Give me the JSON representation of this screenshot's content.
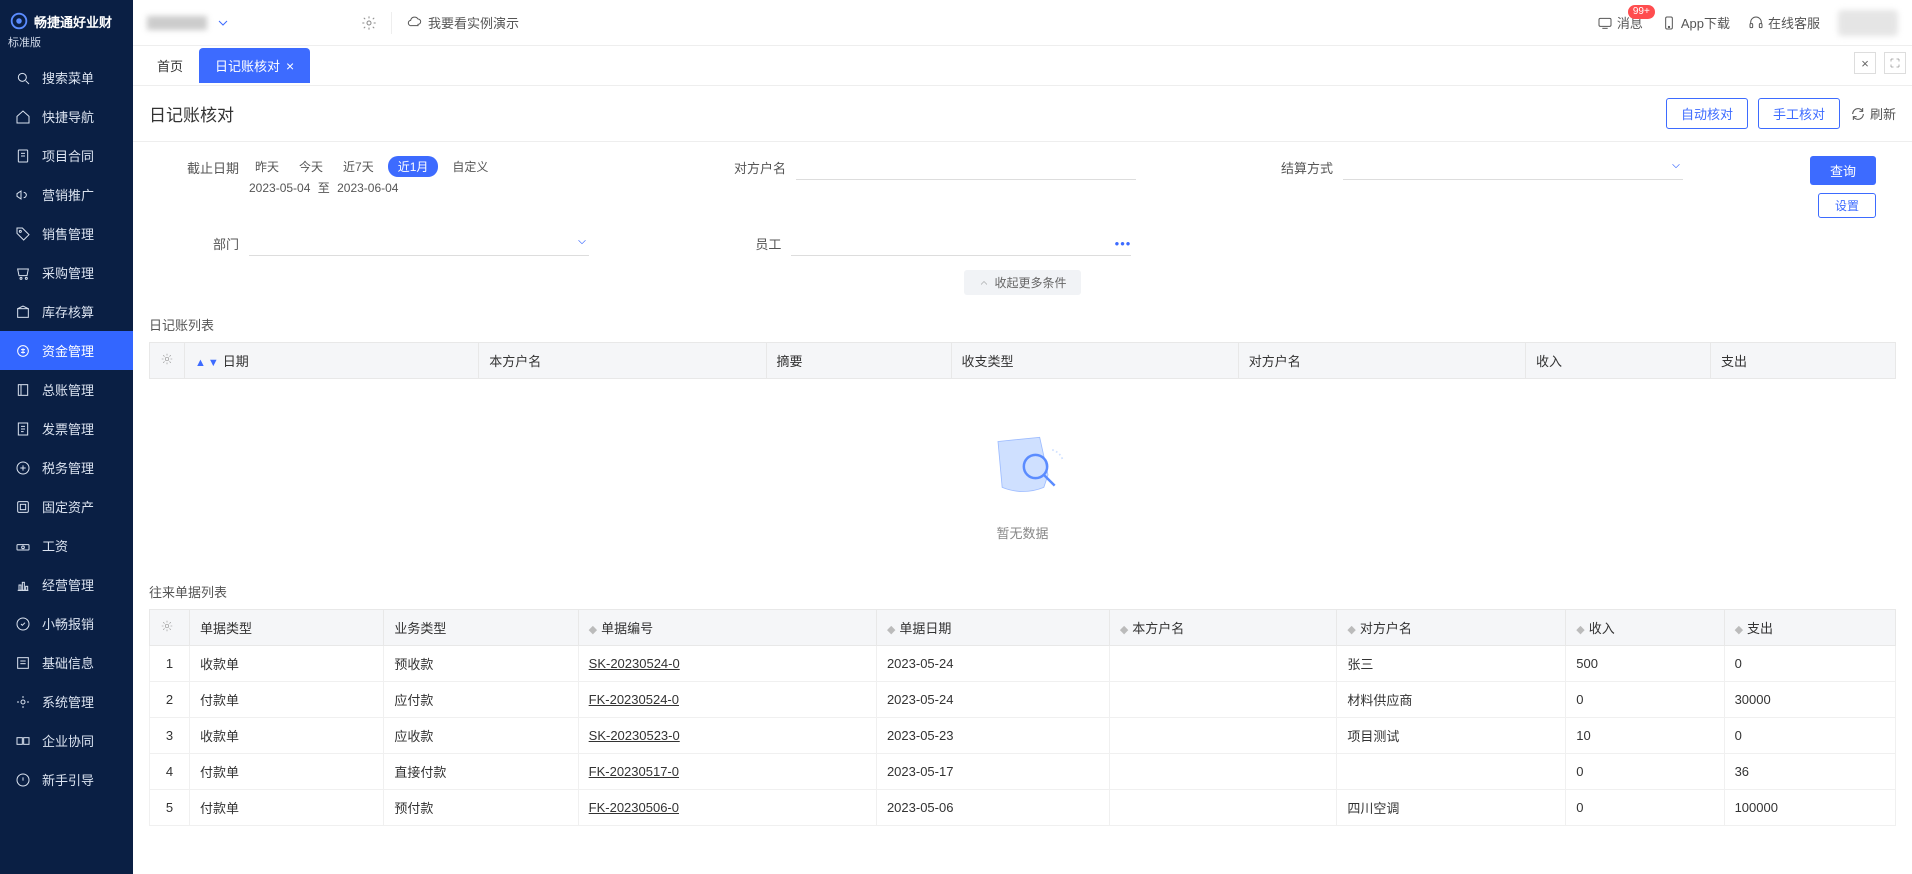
{
  "brand": {
    "name": "畅捷通好业财",
    "edition": "标准版"
  },
  "sidebar": {
    "items": [
      {
        "label": "搜索菜单",
        "icon": "search"
      },
      {
        "label": "快捷导航",
        "icon": "home"
      },
      {
        "label": "项目合同",
        "icon": "doc"
      },
      {
        "label": "营销推广",
        "icon": "speaker"
      },
      {
        "label": "销售管理",
        "icon": "tag"
      },
      {
        "label": "采购管理",
        "icon": "cart"
      },
      {
        "label": "库存核算",
        "icon": "box"
      },
      {
        "label": "资金管理",
        "icon": "coin",
        "active": true
      },
      {
        "label": "总账管理",
        "icon": "ledger"
      },
      {
        "label": "发票管理",
        "icon": "invoice"
      },
      {
        "label": "税务管理",
        "icon": "tax"
      },
      {
        "label": "固定资产",
        "icon": "asset"
      },
      {
        "label": "工资",
        "icon": "salary"
      },
      {
        "label": "经营管理",
        "icon": "chart"
      },
      {
        "label": "小畅报销",
        "icon": "expense"
      },
      {
        "label": "基础信息",
        "icon": "info"
      },
      {
        "label": "系统管理",
        "icon": "gear"
      },
      {
        "label": "企业协同",
        "icon": "collab"
      },
      {
        "label": "新手引导",
        "icon": "guide"
      }
    ]
  },
  "topbar": {
    "demo_link": "我要看实例演示",
    "right": {
      "msg": "消息",
      "msg_badge": "99+",
      "app": "App下载",
      "service": "在线客服"
    }
  },
  "tabs": [
    {
      "label": "首页"
    },
    {
      "label": "日记账核对",
      "active": true
    }
  ],
  "page": {
    "title": "日记账核对",
    "btn_auto": "自动核对",
    "btn_manual": "手工核对",
    "btn_refresh": "刷新"
  },
  "filters": {
    "date_label": "截止日期",
    "date_options": [
      {
        "label": "昨天"
      },
      {
        "label": "今天"
      },
      {
        "label": "近7天"
      },
      {
        "label": "近1月",
        "active": true
      },
      {
        "label": "自定义"
      }
    ],
    "date_from": "2023-05-04",
    "date_to": "2023-06-04",
    "date_range_sep": "至",
    "counterparty_label": "对方户名",
    "settle_label": "结算方式",
    "dept_label": "部门",
    "staff_label": "员工",
    "btn_query": "查询",
    "btn_settings": "设置",
    "collapse_text": "收起更多条件"
  },
  "table1": {
    "title": "日记账列表",
    "columns": [
      "日期",
      "本方户名",
      "摘要",
      "收支类型",
      "对方户名",
      "收入",
      "支出"
    ],
    "empty_text": "暂无数据"
  },
  "table2": {
    "title": "往来单据列表",
    "columns": [
      "单据类型",
      "业务类型",
      "单据编号",
      "单据日期",
      "本方户名",
      "对方户名",
      "收入",
      "支出"
    ],
    "rows": [
      {
        "idx": "1",
        "doc_type": "收款单",
        "biz_type": "预收款",
        "doc_no": "SK-20230524-0",
        "doc_date": "2023-05-24",
        "our_acct": "",
        "their_acct": "张三",
        "income": "500",
        "expense": "0"
      },
      {
        "idx": "2",
        "doc_type": "付款单",
        "biz_type": "应付款",
        "doc_no": "FK-20230524-0",
        "doc_date": "2023-05-24",
        "our_acct": "",
        "their_acct": "材料供应商",
        "income": "0",
        "expense": "30000"
      },
      {
        "idx": "3",
        "doc_type": "收款单",
        "biz_type": "应收款",
        "doc_no": "SK-20230523-0",
        "doc_date": "2023-05-23",
        "our_acct": "",
        "their_acct": "项目测试",
        "income": "10",
        "expense": "0"
      },
      {
        "idx": "4",
        "doc_type": "付款单",
        "biz_type": "直接付款",
        "doc_no": "FK-20230517-0",
        "doc_date": "2023-05-17",
        "our_acct": "",
        "their_acct": "",
        "income": "0",
        "expense": "36"
      },
      {
        "idx": "5",
        "doc_type": "付款单",
        "biz_type": "预付款",
        "doc_no": "FK-20230506-0",
        "doc_date": "2023-05-06",
        "our_acct": "",
        "their_acct": "四川空调",
        "income": "0",
        "expense": "100000"
      }
    ]
  },
  "colors": {
    "primary": "#3d6bff",
    "sidebar_bg": "#0a1f44",
    "badge": "#ff4d4f",
    "table_head": "#f5f6f8",
    "border": "#e8e8e8"
  }
}
